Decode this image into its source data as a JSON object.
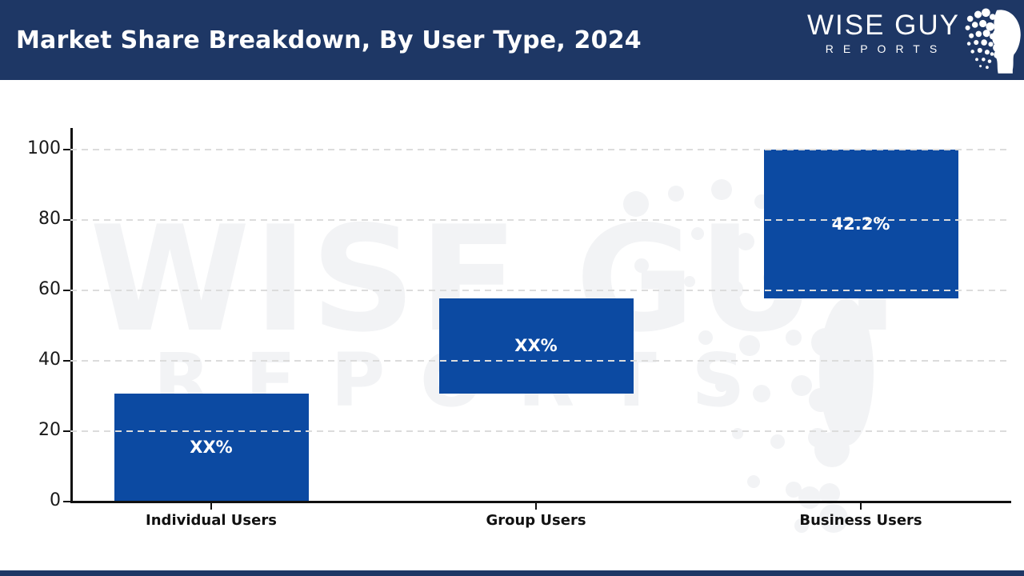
{
  "header": {
    "title": "Market Share Breakdown, By User Type, 2024",
    "bg_color": "#1e3765",
    "logo": {
      "name_line": "WISE GUY",
      "sub_line": "REPORTS"
    }
  },
  "watermark": {
    "line1": "WISE GUY",
    "line2": "REPORTS"
  },
  "chart_data": {
    "type": "bar",
    "variant": "floating-waterfall",
    "title": "Market Share Breakdown, By User Type, 2024",
    "categories": [
      "Individual Users",
      "Group Users",
      "Business Users"
    ],
    "series": [
      {
        "name": "Market share (%)",
        "segments": [
          {
            "category": "Individual Users",
            "start": 0,
            "end": 30.7,
            "label": "XX%"
          },
          {
            "category": "Group Users",
            "start": 30.7,
            "end": 57.8,
            "label": "XX%"
          },
          {
            "category": "Business Users",
            "start": 57.8,
            "end": 100,
            "label": "42.2%"
          }
        ]
      }
    ],
    "ylim": [
      0,
      100
    ],
    "yticks": [
      0,
      20,
      40,
      60,
      80,
      100
    ],
    "bar_color": "#0c4aa2",
    "grid": "horizontal-dashed",
    "gridline_color": "#dcdcdc",
    "axis_color": "#111111",
    "legend": "none"
  },
  "footer": {
    "bg_color": "#1e3765"
  }
}
